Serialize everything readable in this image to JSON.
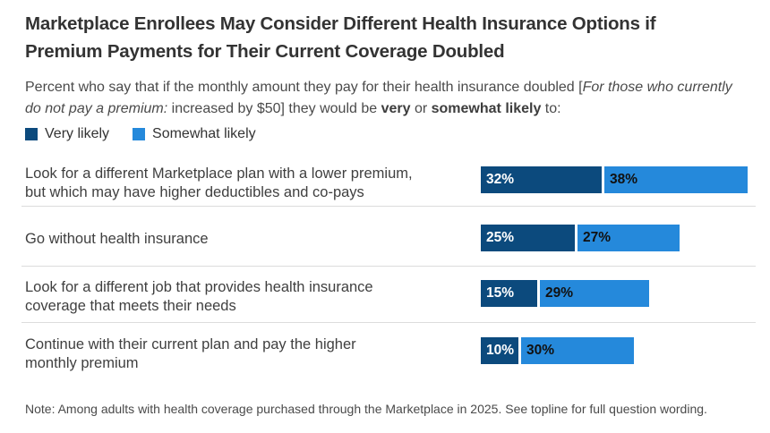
{
  "header": {
    "title": "Marketplace Enrollees May Consider Different Health Insurance Options if\nPremium Payments for Their Current Coverage Doubled",
    "subtitle": {
      "seg1": "Percent who say that if the monthly amount they pay for their health insurance doubled [",
      "italic": "For those who currently do not pay a premium:",
      "seg2": " increased by $50] they would be ",
      "bold1": "very",
      "seg3": " or ",
      "bold2": "somewhat likely",
      "seg4": " to:"
    }
  },
  "legend": {
    "items": [
      {
        "label": "Very likely",
        "color": "#0C4A7D"
      },
      {
        "label": "Somewhat likely",
        "color": "#2589DB"
      }
    ]
  },
  "chart_data": {
    "type": "bar",
    "orientation": "horizontal",
    "stacked": true,
    "unit": "%",
    "xlim": [
      0,
      100
    ],
    "grid": false,
    "legend_position": "top-left",
    "categories": [
      "Look for a different Marketplace plan with a lower premium,\nbut which may have higher deductibles and co-pays",
      "Go without health insurance",
      "Look for a different job that provides health insurance\ncoverage that meets their needs",
      "Continue with their current plan and pay the higher\nmonthly premium"
    ],
    "series": [
      {
        "name": "Very likely",
        "color": "#0C4A7D",
        "text_color": "#ffffff",
        "values": [
          32,
          25,
          15,
          10
        ]
      },
      {
        "name": "Somewhat likely",
        "color": "#2589DB",
        "text_color": "#111111",
        "values": [
          38,
          27,
          29,
          30
        ]
      }
    ],
    "data_labels": [
      [
        "32%",
        "38%"
      ],
      [
        "25%",
        "27%"
      ],
      [
        "15%",
        "29%"
      ],
      [
        "10%",
        "30%"
      ]
    ]
  },
  "note": "Note: Among adults with health coverage purchased through the Marketplace in 2025. See topline for full question wording."
}
